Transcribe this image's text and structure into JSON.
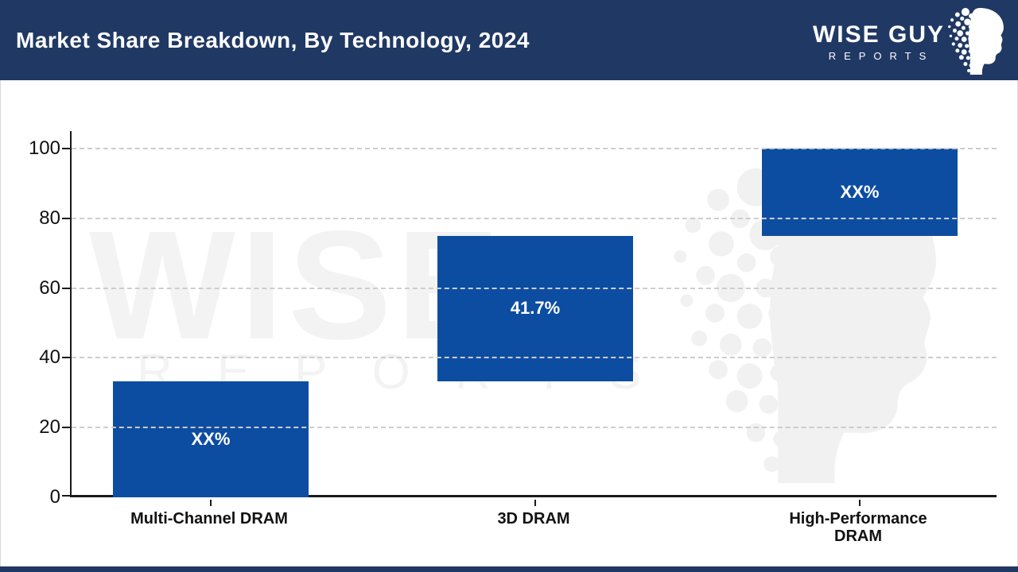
{
  "header": {
    "title": "Market Share Breakdown, By Technology, 2024",
    "logo": {
      "line1": "WISE GUY",
      "line2": "REPORTS"
    }
  },
  "watermark": {
    "line1": "WISE",
    "line2": "REPORTS"
  },
  "chart_data": {
    "type": "bar",
    "subtype": "floating-waterfall",
    "title": "Market Share Breakdown, By Technology, 2024",
    "categories": [
      "Multi-Channel DRAM",
      "3D DRAM",
      "High-Performance DRAM"
    ],
    "series": [
      {
        "name": "Market share (%)",
        "segments": [
          {
            "category": "Multi-Channel DRAM",
            "from": 0,
            "to": 33.3,
            "label": "XX%"
          },
          {
            "category": "3D DRAM",
            "from": 33.3,
            "to": 75,
            "label": "41.7%"
          },
          {
            "category": "High-Performance DRAM",
            "from": 75,
            "to": 100,
            "label": "XX%"
          }
        ]
      }
    ],
    "ylim": [
      0,
      100
    ],
    "yticks": [
      0,
      20,
      40,
      60,
      80,
      100
    ],
    "xlabel": "",
    "ylabel": "",
    "grid": "horizontal-dashed",
    "legend": "none",
    "bar_color": "#0c4da2"
  },
  "colors": {
    "navy": "#203864",
    "bar_blue": "#0c4da2",
    "gridline": "#cdcdcd",
    "watermark_gray": "#f3f3f3",
    "axis_black": "#1a1a1a"
  }
}
